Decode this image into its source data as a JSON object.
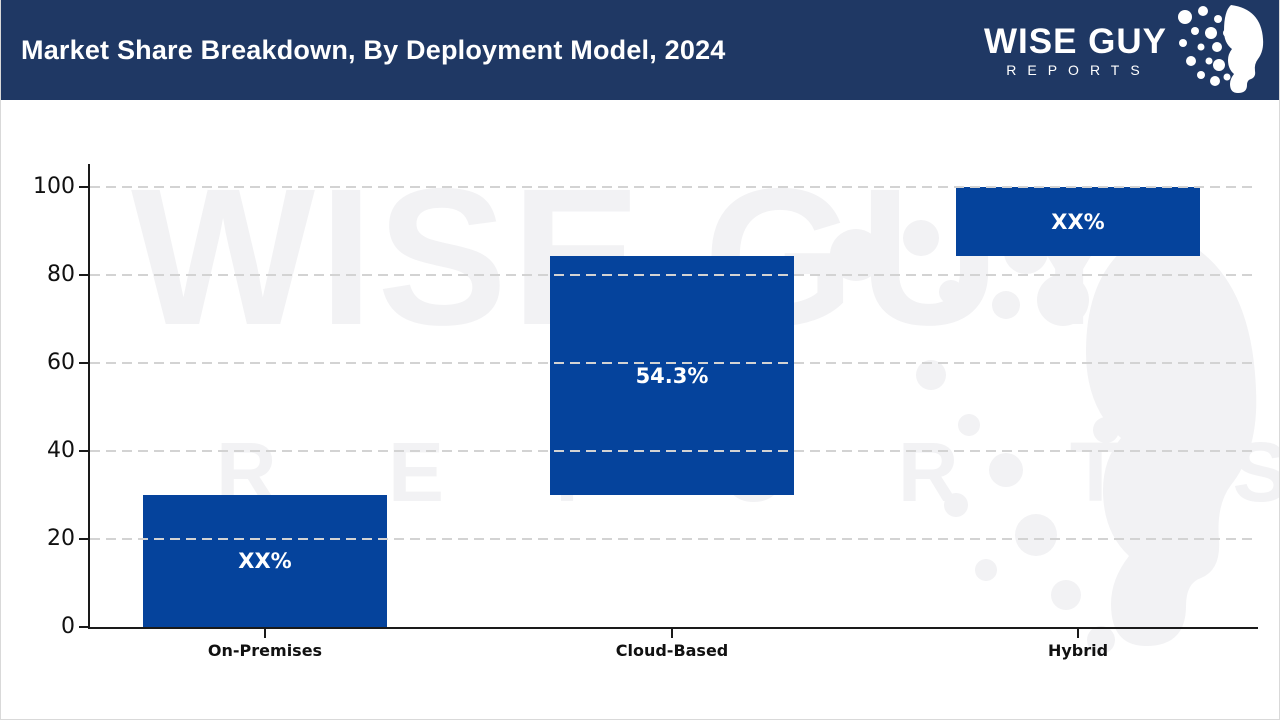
{
  "header": {
    "title": "Market Share Breakdown, By Deployment Model, 2024",
    "logo": {
      "primary": "WISE GUY",
      "secondary": "REPORTS"
    }
  },
  "watermark": {
    "primary": "WISE GUY",
    "secondary": "R E P O R T S"
  },
  "chart_data": {
    "type": "bar",
    "variant": "floating-waterfall",
    "title": "Market Share Breakdown, By Deployment Model, 2024",
    "categories": [
      "On-Premises",
      "Cloud-Based",
      "Hybrid"
    ],
    "segments": [
      {
        "category": "On-Premises",
        "start": 0,
        "end": 30,
        "label": "XX%"
      },
      {
        "category": "Cloud-Based",
        "start": 30,
        "end": 84.3,
        "label": "54.3%"
      },
      {
        "category": "Hybrid",
        "start": 84.3,
        "end": 100,
        "label": "XX%"
      }
    ],
    "yticks": [
      0,
      20,
      40,
      60,
      80,
      100
    ],
    "ylim": [
      0,
      105
    ],
    "xlabel": "",
    "ylabel": "",
    "grid": "dashed-horizontal-above-bars",
    "legend": "none",
    "bar_color": "#05439C",
    "bar_label_color": "#FFFFFF",
    "axis_color": "#1a1a1a",
    "grid_color": "#d3d3d3"
  },
  "colors": {
    "header_bg": "#1F3864",
    "page_bg": "#FFFFFF",
    "watermark": "#f2f2f4",
    "border": "#d9d9d9"
  }
}
